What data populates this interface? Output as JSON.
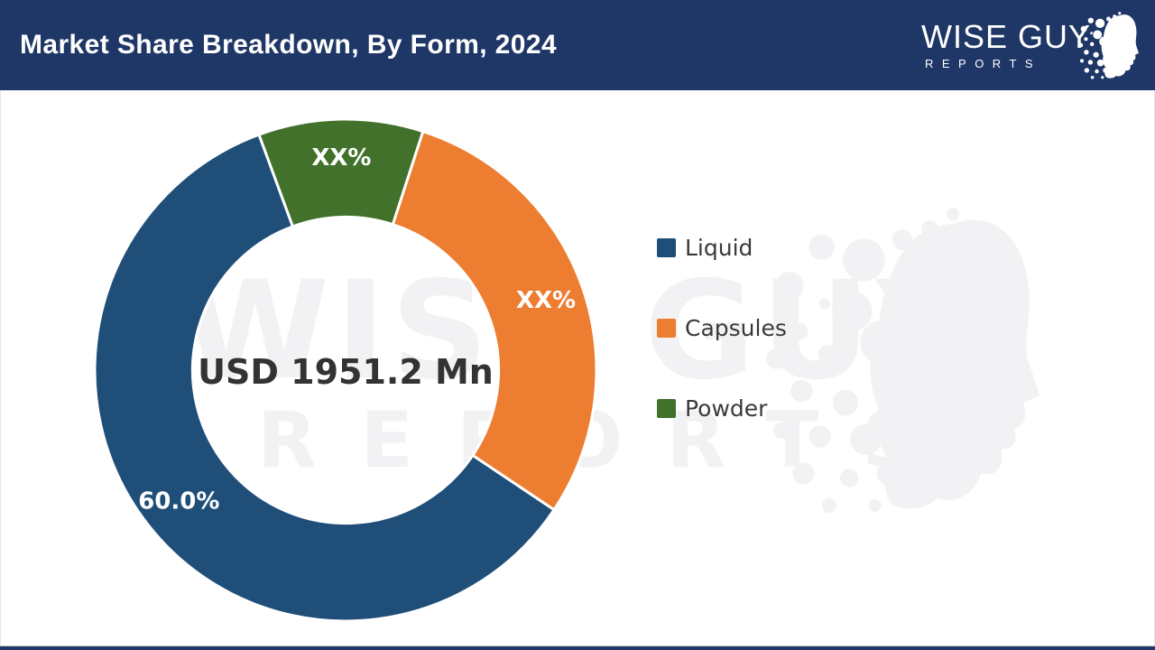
{
  "header": {
    "title": "Market Share Breakdown, By Form, 2024",
    "logo": {
      "name": "WISE GUY",
      "subtitle": "REPORTS"
    },
    "bg_color": "#1f3767"
  },
  "watermark": {
    "line1": "WISE GUY",
    "line2": "REPORTS"
  },
  "chart_data": {
    "type": "pie",
    "subtype": "donut",
    "title": "Market Share Breakdown, By Form, 2024",
    "center_label": "USD 1951.2 Mn",
    "start_angle_deg": 110.2,
    "direction": "counterclockwise",
    "inner_radius_ratio": 0.61,
    "gap_color": "#ffffff",
    "legend_position": "right",
    "segments": [
      {
        "label": "Liquid",
        "value_pct": 60.0,
        "display_label": "60.0%",
        "color": "#1f4e78"
      },
      {
        "label": "Capsules",
        "value_pct": 29.4,
        "display_label": "XX%",
        "color": "#ed7d31"
      },
      {
        "label": "Powder",
        "value_pct": 10.6,
        "display_label": "XX%",
        "color": "#41712b"
      }
    ]
  },
  "colors": {
    "header_bg": "#1f3767",
    "footer_bar": "#1f3767",
    "center_text": "#333333",
    "legend_text": "#3a3a3a",
    "watermark": "#f2f2f4"
  }
}
